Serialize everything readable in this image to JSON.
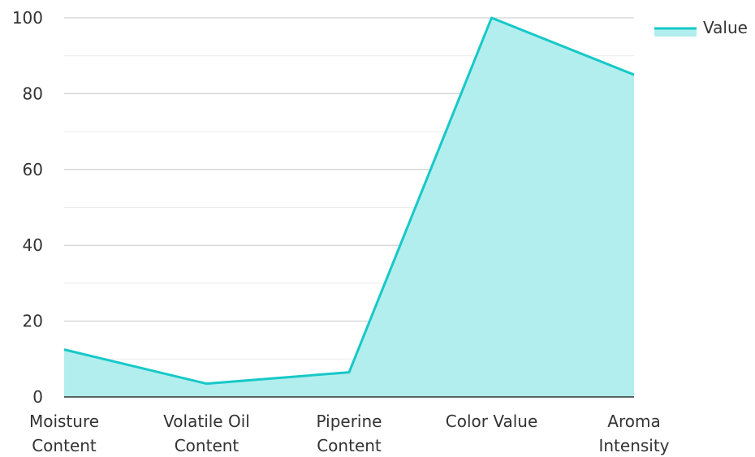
{
  "chart_data": {
    "type": "area",
    "categories": [
      [
        "Moisture",
        "Content"
      ],
      [
        "Volatile Oil",
        "Content"
      ],
      [
        "Piperine",
        "Content"
      ],
      [
        "Color Value"
      ],
      [
        "Aroma",
        "Intensity"
      ]
    ],
    "series": [
      {
        "name": "Value",
        "values": [
          12.5,
          3.5,
          6.5,
          100,
          85
        ],
        "color": "#17c8c8",
        "fill": "#b2eeed"
      }
    ],
    "ylim": [
      0,
      100
    ],
    "yticks": [
      "0",
      "20",
      "40",
      "60",
      "80",
      "100"
    ],
    "grid": true,
    "legend": "top-right"
  }
}
